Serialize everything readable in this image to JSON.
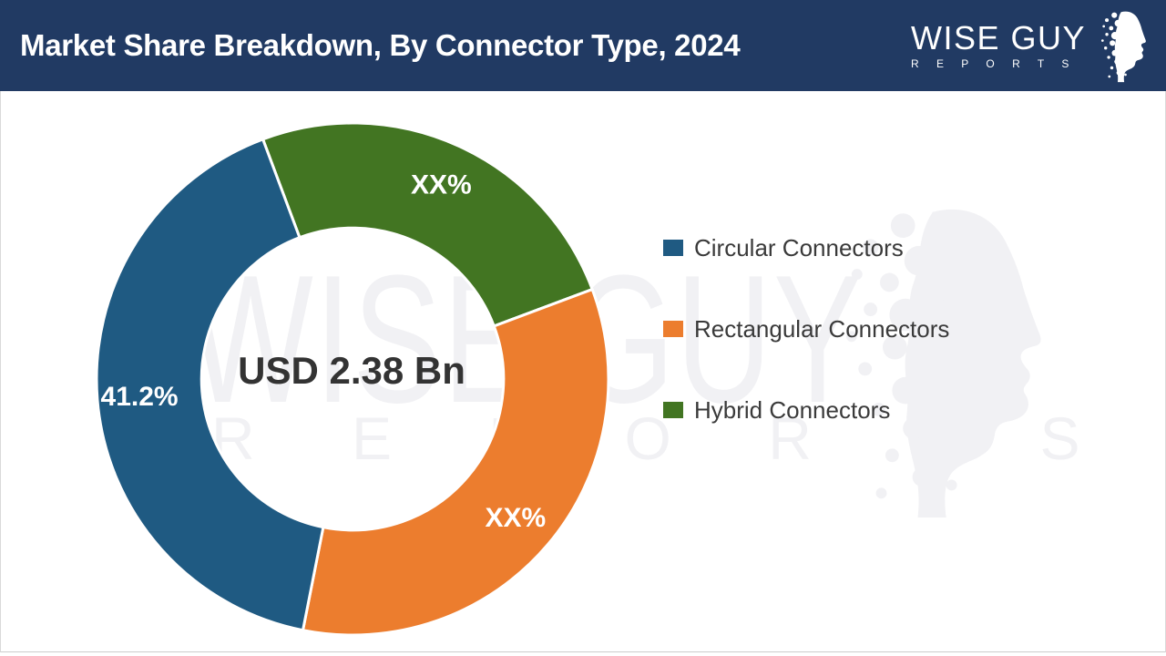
{
  "header": {
    "title": "Market Share Breakdown, By Connector Type, 2024",
    "background_color": "#213A63",
    "brand": {
      "name": "WISE GUY",
      "subtitle": "R E P O R T S"
    }
  },
  "watermark": {
    "line1": "WISE GUY",
    "line2": "R E P O R T S"
  },
  "chart_data": {
    "type": "pie",
    "subtype": "donut",
    "title": "Market Share Breakdown, By Connector Type, 2024",
    "center_label": "USD 2.38 Bn",
    "start_angle_deg": -20.5,
    "draw_order": [
      2,
      1,
      0
    ],
    "inner_radius_ratio": 0.59,
    "label_radius_ratio": 0.835,
    "segments": [
      {
        "name": "Circular Connectors",
        "value": 41.2,
        "label": "41.2%",
        "color": "#1F5A82"
      },
      {
        "name": "Rectangular Connectors",
        "value": 33.8,
        "label": "XX%",
        "color": "#EC7D2E"
      },
      {
        "name": "Hybrid Connectors",
        "value": 25.0,
        "label": "XX%",
        "color": "#427522"
      }
    ],
    "legend_position": "right",
    "colors": {
      "separator": "#ffffff",
      "center_text": "#333333",
      "legend_text": "#3a3a3a"
    }
  }
}
